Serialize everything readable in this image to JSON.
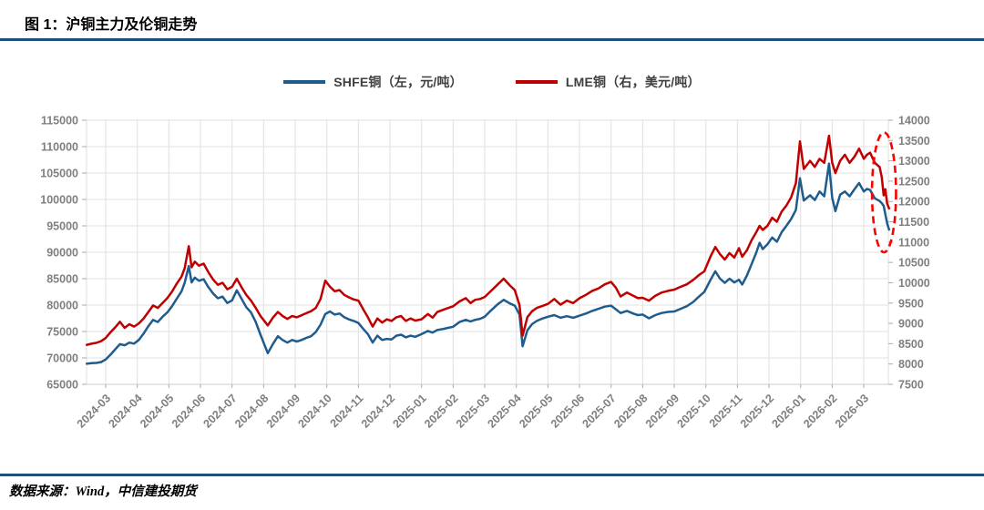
{
  "figure": {
    "title": "图 1：沪铜主力及伦铜走势"
  },
  "footer": {
    "source": "数据来源：Wind，中信建投期货"
  },
  "colors": {
    "title_rule": "#1F4E79",
    "shfe_line": "#1F5C8E",
    "lme_line": "#C00000",
    "annotation": "#FF0000",
    "axis_label": "#7F7F7F",
    "gridline": "#E2E2E2"
  },
  "legend": [
    {
      "label": "SHFE铜（左，元/吨）",
      "color": "#1F5C8E"
    },
    {
      "label": "LME铜（右，美元/吨）",
      "color": "#C00000"
    }
  ],
  "chart_data": {
    "type": "line",
    "title": "沪铜主力及伦铜走势",
    "x_unit": "month (0 = 2024-03, fractional = within month)",
    "x_tick_labels": [
      "2024-03",
      "2024-04",
      "2024-05",
      "2024-06",
      "2024-07",
      "2024-08",
      "2024-09",
      "2024-10",
      "2024-11",
      "2024-12",
      "2025-01",
      "2025-02",
      "2025-03",
      "2025-04",
      "2025-05",
      "2025-06",
      "2025-07",
      "2025-08",
      "2025-09",
      "2025-10",
      "2025-11",
      "2025-12",
      "2026-01",
      "2026-02",
      "2026-03"
    ],
    "left_axis": {
      "series": "SHFE铜",
      "unit": "元/吨",
      "min": 65000,
      "max": 115000,
      "step": 5000
    },
    "right_axis": {
      "series": "LME铜",
      "unit": "美元/吨",
      "min": 7500,
      "max": 14000,
      "step": 500
    },
    "left_tick_labels": [
      "115000",
      "110000",
      "105000",
      "100000",
      "95000",
      "90000",
      "85000",
      "80000",
      "75000",
      "70000",
      "65000"
    ],
    "right_tick_labels": [
      "14000",
      "13500",
      "13000",
      "12500",
      "12000",
      "11500",
      "11000",
      "10500",
      "10000",
      "9500",
      "9000",
      "8500",
      "8000",
      "7500"
    ],
    "grid": true,
    "legend_position": "top-center",
    "t": [
      -0.6,
      -0.45,
      -0.3,
      -0.15,
      0,
      0.15,
      0.3,
      0.45,
      0.6,
      0.75,
      0.9,
      1.05,
      1.2,
      1.35,
      1.5,
      1.65,
      1.8,
      1.95,
      2.1,
      2.25,
      2.4,
      2.5,
      2.63,
      2.72,
      2.82,
      2.95,
      3.1,
      3.25,
      3.4,
      3.55,
      3.7,
      3.85,
      4.0,
      4.15,
      4.3,
      4.45,
      4.6,
      4.75,
      4.9,
      5.13,
      5.3,
      5.45,
      5.6,
      5.75,
      5.9,
      6.05,
      6.2,
      6.35,
      6.5,
      6.65,
      6.8,
      6.95,
      7.1,
      7.25,
      7.4,
      7.55,
      7.7,
      7.85,
      8.0,
      8.15,
      8.3,
      8.45,
      8.6,
      8.75,
      8.9,
      9.05,
      9.2,
      9.35,
      9.5,
      9.65,
      9.8,
      10.0,
      10.2,
      10.35,
      10.5,
      10.7,
      10.85,
      11.0,
      11.2,
      11.4,
      11.55,
      11.7,
      11.85,
      12.0,
      12.2,
      12.4,
      12.6,
      12.8,
      12.95,
      13.1,
      13.2,
      13.35,
      13.5,
      13.65,
      13.8,
      14.0,
      14.2,
      14.4,
      14.6,
      14.8,
      15.0,
      15.2,
      15.4,
      15.6,
      15.8,
      16.0,
      16.15,
      16.3,
      16.5,
      16.7,
      16.85,
      17.0,
      17.2,
      17.4,
      17.6,
      17.8,
      18.0,
      18.2,
      18.4,
      18.6,
      18.8,
      18.95,
      19.15,
      19.3,
      19.45,
      19.6,
      19.75,
      19.9,
      20.05,
      20.15,
      20.3,
      20.45,
      20.6,
      20.7,
      20.8,
      20.95,
      21.1,
      21.25,
      21.4,
      21.55,
      21.7,
      21.85,
      21.98,
      22.1,
      22.3,
      22.45,
      22.6,
      22.75,
      22.9,
      23.0,
      23.1,
      23.25,
      23.4,
      23.55,
      23.7,
      23.85,
      24.0,
      24.1,
      24.2,
      24.35,
      24.5,
      24.57,
      24.63,
      24.68,
      24.74,
      24.8
    ],
    "series": [
      {
        "name": "SHFE铜（左，元/吨）",
        "axis": "left",
        "color": "#1F5C8E",
        "values": [
          68900,
          69000,
          69050,
          69200,
          69700,
          70600,
          71600,
          72600,
          72400,
          72900,
          72700,
          73400,
          74600,
          76000,
          77200,
          76800,
          77800,
          78600,
          79800,
          81200,
          82600,
          84200,
          87400,
          84300,
          85200,
          84600,
          84900,
          83400,
          82200,
          81300,
          81600,
          80400,
          80900,
          82800,
          81200,
          79600,
          78600,
          76800,
          74400,
          70900,
          72700,
          74100,
          73400,
          72900,
          73400,
          73100,
          73400,
          73800,
          74100,
          74900,
          76300,
          78300,
          78800,
          78200,
          78400,
          77700,
          77300,
          77000,
          76600,
          75500,
          74500,
          72900,
          74200,
          73400,
          73600,
          73500,
          74200,
          74400,
          73900,
          74200,
          74000,
          74500,
          75100,
          74800,
          75300,
          75500,
          75700,
          75900,
          76800,
          77200,
          76900,
          77200,
          77400,
          77800,
          79000,
          80100,
          81000,
          80300,
          79900,
          78200,
          72200,
          75200,
          76400,
          77000,
          77400,
          77800,
          78100,
          77600,
          77900,
          77600,
          78000,
          78400,
          78900,
          79300,
          79700,
          79900,
          79200,
          78500,
          78900,
          78400,
          78100,
          78200,
          77500,
          78100,
          78500,
          78700,
          78800,
          79300,
          79800,
          80600,
          81700,
          82500,
          84800,
          86400,
          85000,
          84200,
          85000,
          84300,
          84800,
          83900,
          85600,
          87800,
          90000,
          91800,
          90600,
          91500,
          92800,
          92000,
          93800,
          95000,
          96300,
          98000,
          104000,
          99800,
          100800,
          99900,
          101500,
          100600,
          106800,
          100300,
          97800,
          100900,
          101500,
          100600,
          101900,
          103100,
          101500,
          102000,
          101800,
          100200,
          99700,
          99300,
          98800,
          97200,
          95500,
          94300
        ]
      },
      {
        "name": "LME铜（右，美元/吨）",
        "axis": "right",
        "color": "#C00000",
        "values": [
          8470,
          8500,
          8520,
          8560,
          8640,
          8780,
          8900,
          9040,
          8890,
          8980,
          8920,
          9000,
          9120,
          9280,
          9440,
          9380,
          9500,
          9620,
          9780,
          9980,
          10150,
          10360,
          10900,
          10380,
          10520,
          10420,
          10470,
          10260,
          10080,
          9950,
          10000,
          9840,
          9900,
          10100,
          9890,
          9700,
          9560,
          9380,
          9180,
          8950,
          9150,
          9280,
          9180,
          9110,
          9180,
          9150,
          9200,
          9250,
          9300,
          9380,
          9600,
          10050,
          9900,
          9790,
          9820,
          9700,
          9640,
          9590,
          9560,
          9350,
          9150,
          8920,
          9120,
          9020,
          9100,
          9060,
          9150,
          9180,
          9060,
          9120,
          9070,
          9100,
          9230,
          9140,
          9280,
          9340,
          9380,
          9420,
          9540,
          9620,
          9500,
          9580,
          9600,
          9650,
          9800,
          9950,
          10100,
          9930,
          9820,
          9450,
          8700,
          9150,
          9300,
          9380,
          9420,
          9480,
          9600,
          9460,
          9560,
          9500,
          9620,
          9700,
          9800,
          9860,
          9960,
          10020,
          9880,
          9660,
          9760,
          9680,
          9620,
          9630,
          9560,
          9680,
          9760,
          9800,
          9830,
          9900,
          9960,
          10070,
          10200,
          10280,
          10650,
          10880,
          10700,
          10570,
          10730,
          10620,
          10850,
          10640,
          10800,
          11050,
          11250,
          11400,
          11300,
          11400,
          11600,
          11500,
          11750,
          11900,
          12100,
          12450,
          13480,
          12800,
          13000,
          12850,
          13050,
          12950,
          13620,
          12950,
          12700,
          13000,
          13150,
          12950,
          13100,
          13300,
          13050,
          13150,
          13200,
          12950,
          12850,
          12600,
          12150,
          12300,
          11950,
          11830
        ]
      }
    ],
    "annotation": {
      "type": "dashed-ellipse",
      "color": "#FF0000",
      "t_min": 24.26,
      "t_max": 25.02,
      "right_axis_min": 10750,
      "right_axis_max": 13700
    }
  }
}
